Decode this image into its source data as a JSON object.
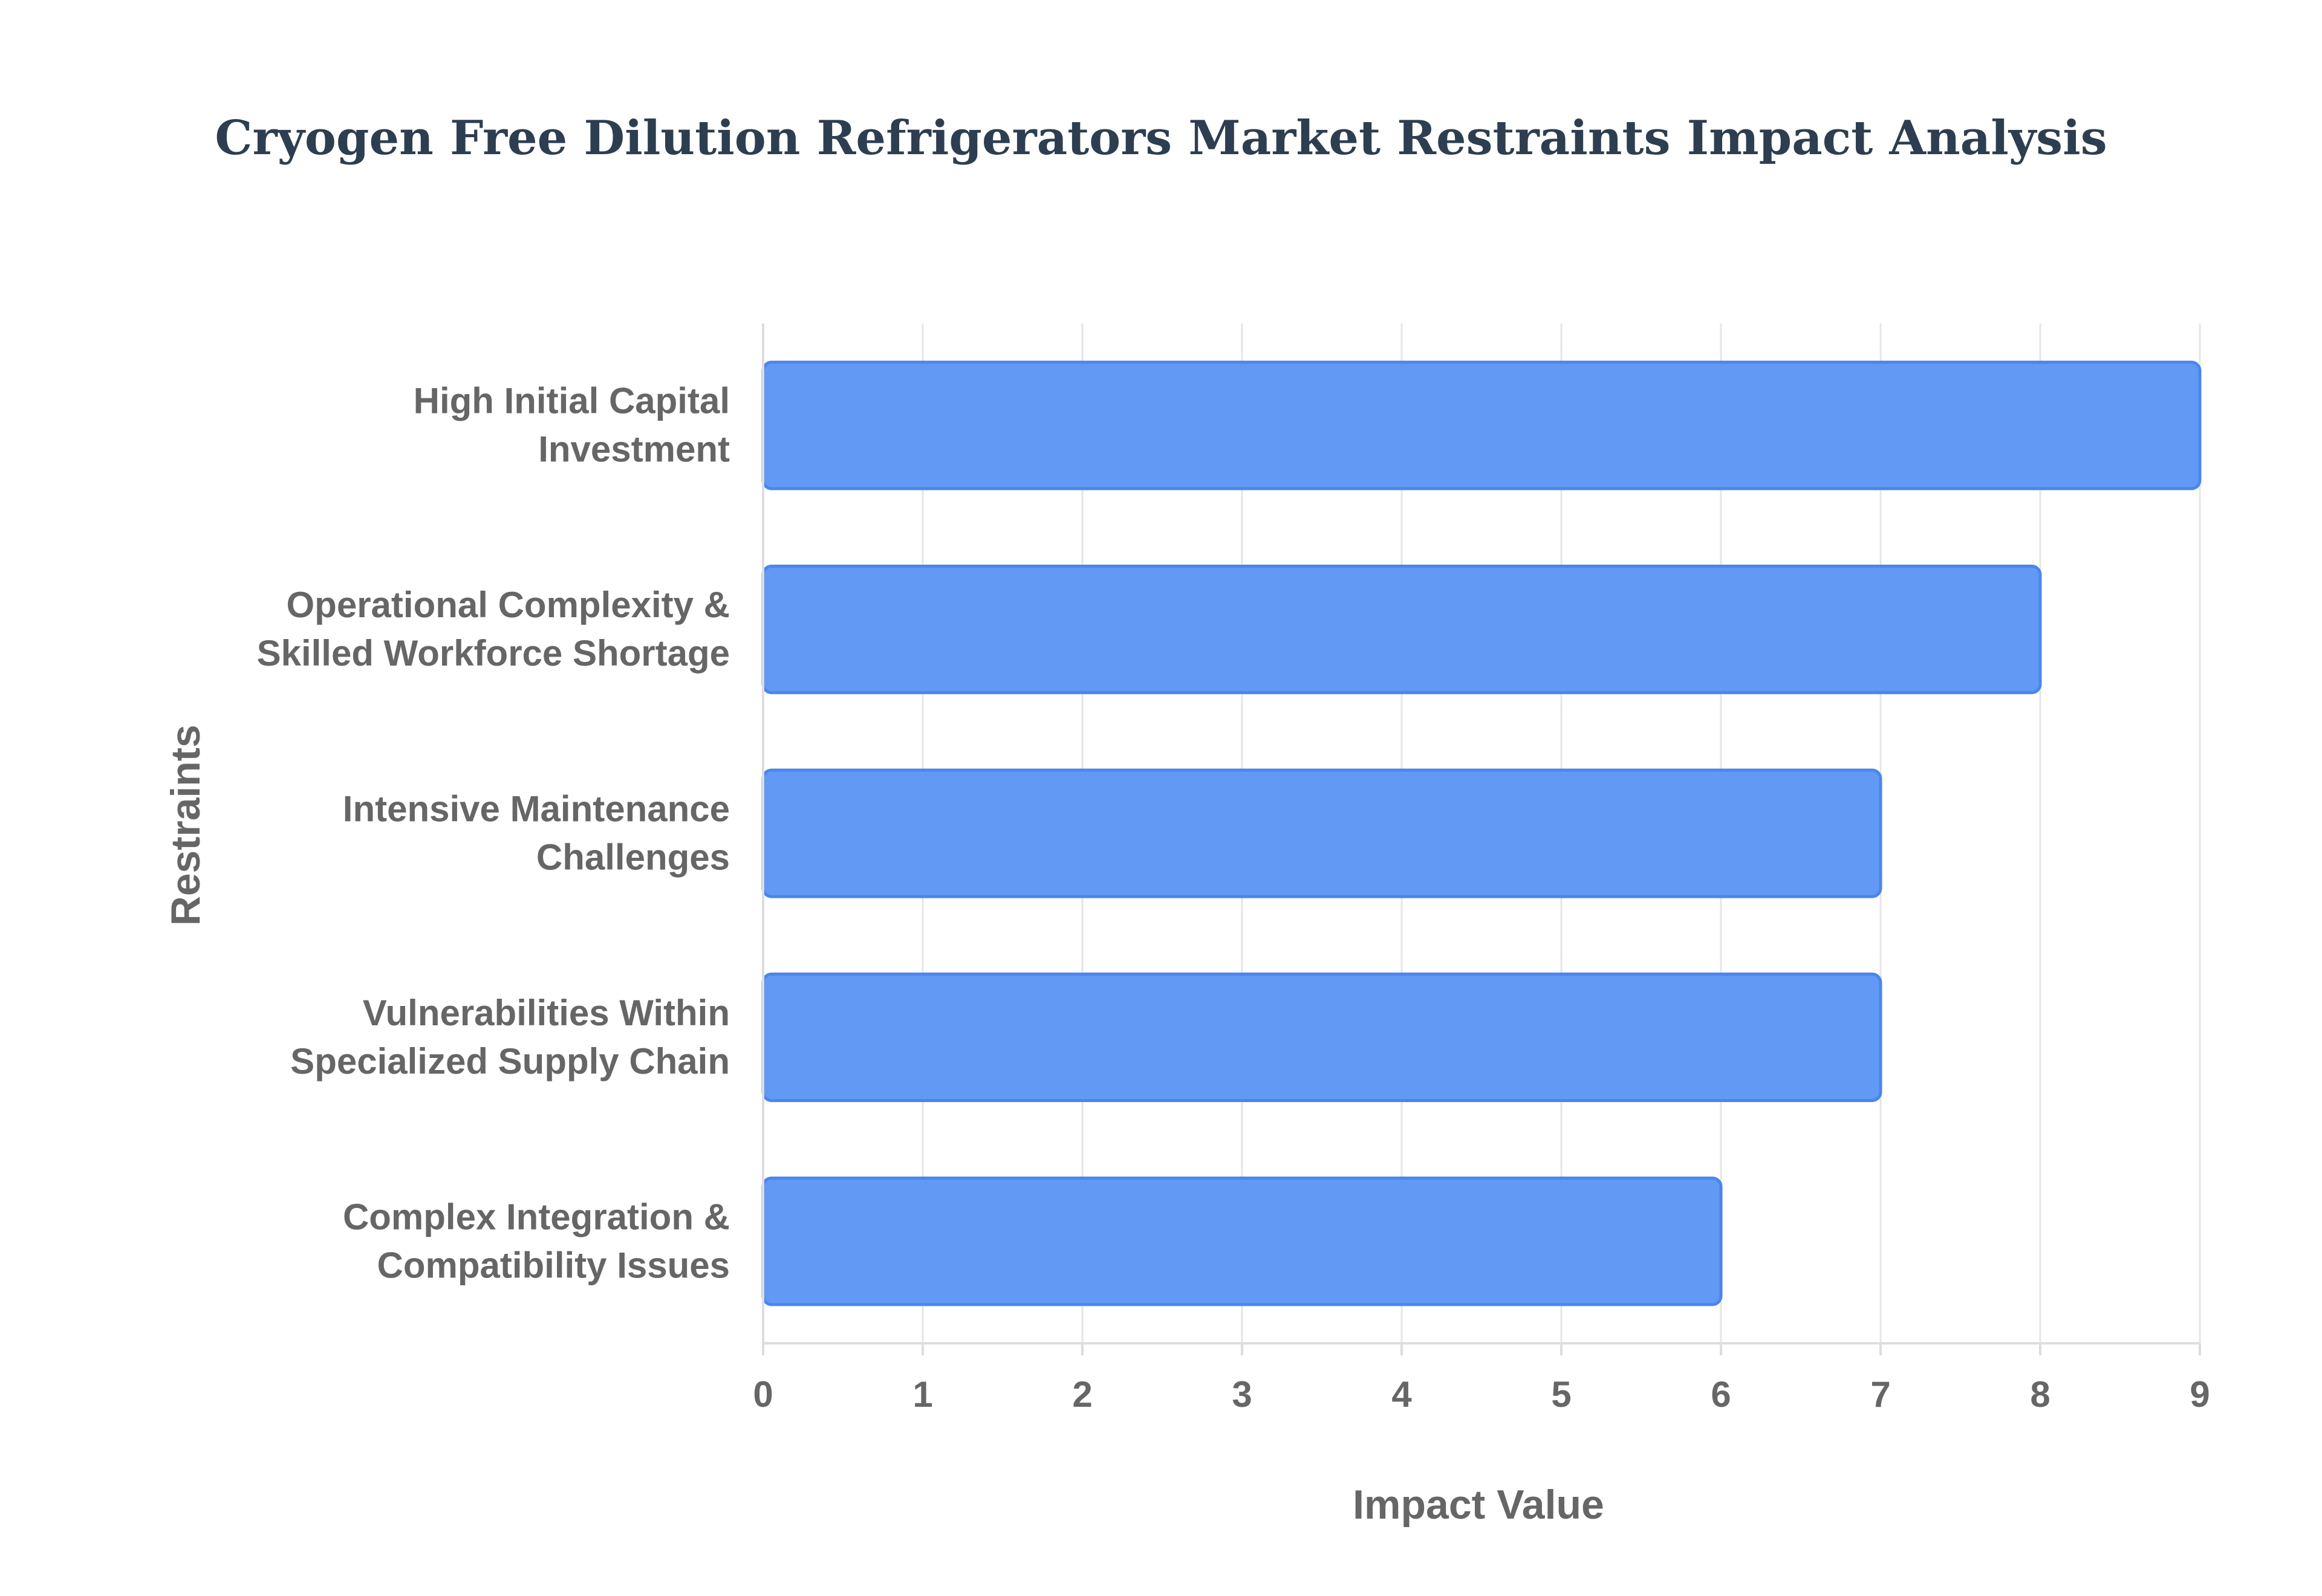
{
  "colors": {
    "bar_fill": "#6199f5",
    "bar_stroke": "#4a86ec"
  },
  "chart_data": {
    "type": "bar",
    "orientation": "horizontal",
    "title": "Cryogen Free Dilution Refrigerators Market Restraints Impact Analysis",
    "xlabel": "Impact Value",
    "ylabel": "Restraints",
    "xlim": [
      0,
      9
    ],
    "xticks": [
      "0",
      "1",
      "2",
      "3",
      "4",
      "5",
      "6",
      "7",
      "8",
      "9"
    ],
    "grid": true,
    "categories": [
      [
        "High Initial Capital",
        "Investment"
      ],
      [
        "Operational Complexity &",
        "Skilled Workforce Shortage"
      ],
      [
        "Intensive Maintenance",
        "Challenges"
      ],
      [
        "Vulnerabilities Within",
        "Specialized Supply Chain"
      ],
      [
        "Complex Integration &",
        "Compatibility Issues"
      ]
    ],
    "values": [
      9,
      8,
      7,
      7,
      6
    ]
  }
}
